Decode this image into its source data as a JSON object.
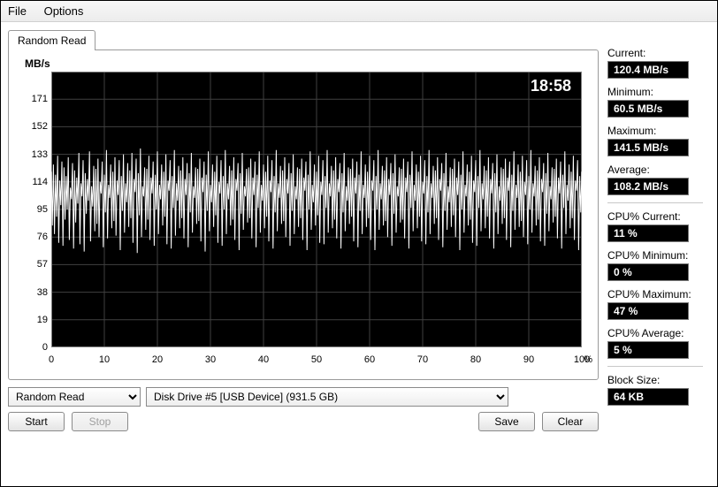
{
  "menu": {
    "file": "File",
    "options": "Options"
  },
  "tab": {
    "label": "Random Read"
  },
  "chart": {
    "type": "line",
    "ylabel": "MB/s",
    "timestamp": "18:58",
    "line_color": "#ffffff",
    "background_color": "#000000",
    "grid_color": "#404040",
    "axis_color": "#808080",
    "xlim": [
      0,
      100
    ],
    "ylim": [
      0,
      190
    ],
    "yticks": [
      0,
      19,
      38,
      57,
      76,
      95,
      114,
      133,
      152,
      171
    ],
    "xticks": [
      0,
      10,
      20,
      30,
      40,
      50,
      60,
      70,
      80,
      90,
      100
    ],
    "xunit": "%",
    "series_mean": 108,
    "series_min": 60,
    "series_max": 142,
    "series": [
      121,
      84,
      126,
      78,
      119,
      90,
      132,
      72,
      115,
      98,
      128,
      70,
      124,
      88,
      118,
      95,
      131,
      74,
      110,
      102,
      127,
      68,
      122,
      86,
      117,
      99,
      134,
      71,
      113,
      104,
      129,
      66,
      120,
      92,
      116,
      101,
      135,
      73,
      111,
      97,
      125,
      80,
      123,
      85,
      130,
      76,
      114,
      106,
      128,
      69,
      119,
      93,
      136,
      75,
      112,
      103,
      126,
      82,
      121,
      87,
      131,
      77,
      115,
      105,
      129,
      67,
      118,
      94,
      133,
      79,
      113,
      100,
      127,
      83,
      122,
      89,
      134,
      72,
      116,
      107,
      130,
      65,
      120,
      91,
      137,
      76,
      111,
      104,
      124,
      81,
      123,
      88,
      132,
      74,
      117,
      106,
      128,
      70,
      119,
      95,
      135,
      78,
      112,
      102,
      126,
      84,
      121,
      90,
      133,
      71,
      115,
      108,
      129,
      68,
      118,
      96,
      136,
      77,
      113,
      101,
      125,
      82,
      122,
      89,
      131,
      75,
      116,
      105,
      127,
      69,
      120,
      93,
      134,
      79,
      111,
      103,
      124,
      85,
      123,
      87,
      130,
      73,
      117,
      107,
      128,
      66,
      119,
      94,
      135,
      80,
      112,
      100,
      126,
      83,
      121,
      91,
      132,
      72,
      114,
      106,
      129,
      70,
      118,
      95,
      136,
      78,
      113,
      102,
      125,
      84,
      122,
      88,
      131,
      74,
      116,
      108,
      127,
      67,
      120,
      92,
      134,
      81,
      111,
      104,
      123,
      86,
      124,
      89,
      130,
      75,
      117,
      105,
      128,
      69,
      119,
      96,
      135,
      79,
      112,
      101,
      126,
      82,
      121,
      90,
      132,
      73,
      115,
      107,
      129,
      68,
      118,
      93,
      136,
      80,
      113,
      103,
      125,
      85,
      122,
      87,
      131,
      76,
      116,
      106,
      127,
      70,
      120,
      94,
      133,
      78,
      111,
      102,
      124,
      83,
      123,
      89,
      130,
      74,
      117,
      108,
      128,
      67,
      119,
      95,
      135,
      81,
      112,
      100,
      126,
      84,
      121,
      91,
      132,
      72,
      114,
      105,
      129,
      71,
      118,
      96,
      136,
      79,
      113,
      104,
      125,
      82,
      122,
      88,
      131,
      75,
      116,
      107,
      127,
      68,
      120,
      93,
      134,
      80,
      111,
      101,
      124,
      85,
      123,
      90,
      130,
      73,
      117,
      106,
      128,
      69,
      119,
      94,
      135,
      78,
      112,
      103,
      126,
      83,
      121,
      89,
      132,
      74,
      115,
      108,
      129,
      67,
      118,
      95,
      136,
      81,
      113,
      102,
      125,
      84,
      122,
      87,
      131,
      76,
      116,
      105,
      127,
      70,
      120,
      92,
      133,
      79,
      111,
      104,
      124,
      86,
      123,
      88,
      130,
      75,
      117,
      107,
      128,
      68,
      119,
      96,
      135,
      80,
      112,
      101,
      126,
      82,
      121,
      90,
      132,
      73,
      114,
      106,
      129,
      71,
      118,
      93,
      136,
      78,
      113,
      103,
      125,
      85,
      122,
      89,
      131,
      74,
      116,
      108,
      127,
      69,
      120,
      94,
      134,
      81,
      111,
      100,
      124,
      83,
      123,
      91,
      130,
      76,
      117,
      105,
      128,
      67,
      119,
      95,
      135,
      79,
      112,
      104,
      126,
      84,
      121,
      88,
      132,
      72,
      115,
      107,
      129,
      70,
      118,
      96,
      136,
      80,
      113,
      102,
      125,
      82,
      122,
      90,
      131,
      75,
      116,
      106,
      127,
      68,
      120,
      93,
      133,
      78,
      111,
      101,
      124,
      85,
      123,
      89,
      130,
      74,
      117,
      108,
      128,
      69,
      119,
      94,
      135,
      81,
      112,
      103,
      126,
      83,
      121,
      87,
      132,
      76,
      114,
      105,
      129,
      71,
      118,
      95,
      136,
      79,
      113,
      104,
      125,
      84,
      122,
      88,
      131,
      73,
      116,
      107,
      127,
      70,
      120,
      92,
      134,
      80,
      111,
      102,
      124,
      86,
      123,
      90,
      130,
      75,
      117,
      106,
      128,
      68,
      119,
      96,
      135,
      78,
      112,
      101,
      126,
      82,
      121,
      89,
      132,
      74,
      115,
      108,
      129,
      67,
      118,
      93,
      121
    ]
  },
  "controls": {
    "test_select": "Random Read",
    "drive_select": "Disk Drive #5  [USB Device]   (931.5 GB)",
    "start": "Start",
    "stop": "Stop",
    "save": "Save",
    "clear": "Clear"
  },
  "stats": {
    "current_label": "Current:",
    "current_value": "120.4 MB/s",
    "min_label": "Minimum:",
    "min_value": "60.5 MB/s",
    "max_label": "Maximum:",
    "max_value": "141.5 MB/s",
    "avg_label": "Average:",
    "avg_value": "108.2 MB/s",
    "cpu_cur_label": "CPU% Current:",
    "cpu_cur_value": "11 %",
    "cpu_min_label": "CPU% Minimum:",
    "cpu_min_value": "0 %",
    "cpu_max_label": "CPU% Maximum:",
    "cpu_max_value": "47 %",
    "cpu_avg_label": "CPU% Average:",
    "cpu_avg_value": "5 %",
    "block_label": "Block Size:",
    "block_value": "64 KB"
  }
}
